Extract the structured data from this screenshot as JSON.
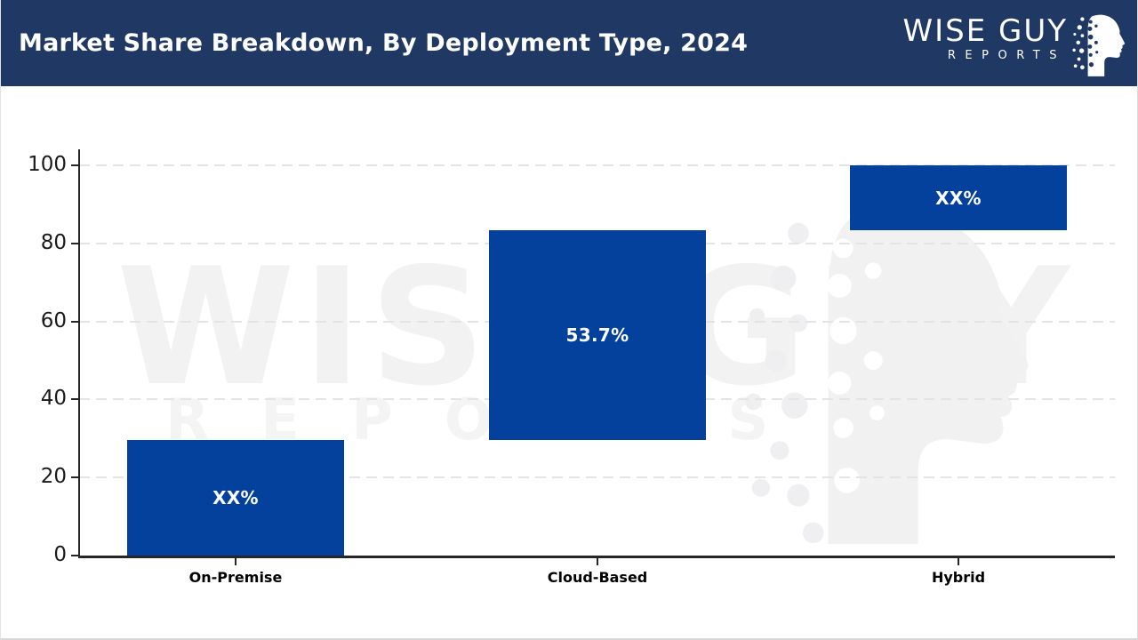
{
  "header": {
    "title": "Market Share Breakdown, By Deployment Type, 2024",
    "logo": {
      "line1": "WISE GUY",
      "line2": "REPORTS"
    }
  },
  "watermark": {
    "line1": "WISE GUY",
    "line2": "REPORTS"
  },
  "chart_data": {
    "type": "bar",
    "subtype": "waterfall-floating-bars",
    "title": "Market Share Breakdown, By Deployment Type, 2024",
    "categories": [
      "On-Premise",
      "Cloud-Based",
      "Hybrid"
    ],
    "bars": [
      {
        "category": "On-Premise",
        "start": 0,
        "end": 29.6,
        "label": "XX%"
      },
      {
        "category": "Cloud-Based",
        "start": 29.6,
        "end": 83.3,
        "label": "53.7%"
      },
      {
        "category": "Hybrid",
        "start": 83.3,
        "end": 100,
        "label": "XX%"
      }
    ],
    "xlabel": "",
    "ylabel": "",
    "ylim": [
      0,
      100
    ],
    "yticks": [
      0,
      20,
      40,
      60,
      80,
      100
    ],
    "grid": "horizontal-dashed",
    "legend": "none",
    "bar_color": "#04419c"
  },
  "colors": {
    "header_bg": "#203864",
    "bar": "#04419c",
    "grid": "#e4e4e4",
    "axis": "#262626",
    "watermark": "#f2f2f3"
  }
}
